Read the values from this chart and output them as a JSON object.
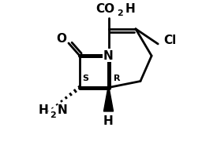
{
  "bg_color": "#ffffff",
  "line_color": "#000000",
  "text_color": "#000000",
  "lw": 2.0,
  "figsize": [
    2.75,
    2.05
  ],
  "dpi": 100,
  "xlim": [
    0,
    10
  ],
  "ylim": [
    0,
    10
  ],
  "N": [
    5.0,
    6.5
  ],
  "Cj": [
    5.0,
    4.5
  ],
  "C8": [
    3.2,
    6.5
  ],
  "C7": [
    3.2,
    4.5
  ],
  "C2": [
    5.0,
    8.2
  ],
  "C3": [
    6.7,
    8.2
  ],
  "C4": [
    7.7,
    6.5
  ],
  "C5": [
    7.0,
    4.9
  ],
  "CO2H_x": 4.5,
  "CO2H_y": 9.5,
  "Cl_x": 8.7,
  "Cl_y": 7.4,
  "O_x": 2.1,
  "O_y": 7.5,
  "H2N_x": 1.2,
  "H2N_y": 3.0,
  "H_x": 5.0,
  "H_y": 3.0,
  "S_x": 3.55,
  "S_y": 5.1,
  "R_x": 5.55,
  "R_y": 5.1,
  "fs": 11,
  "fs_small": 8
}
